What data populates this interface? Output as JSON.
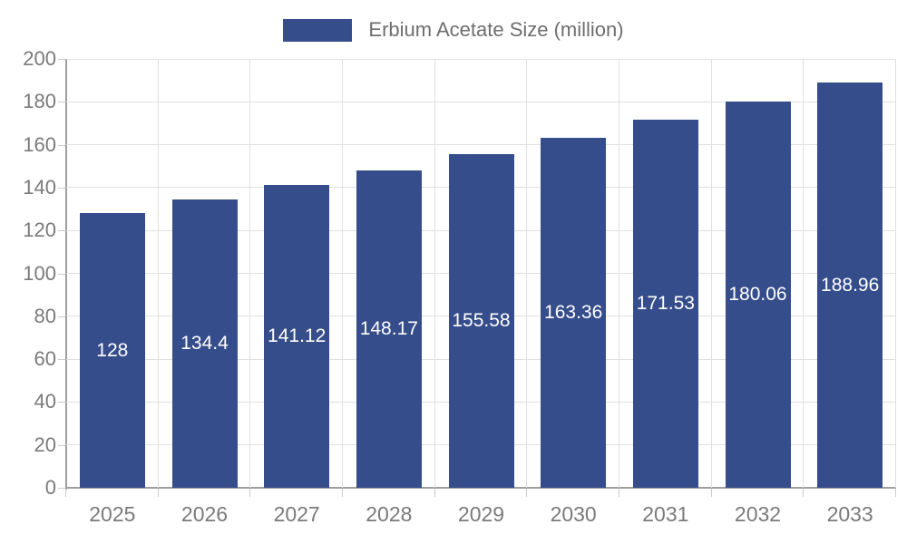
{
  "legend": {
    "label": "Erbium Acetate Size (million)"
  },
  "colors": {
    "bar": "#364d8b",
    "gridline": "#e0e0e0",
    "axis_line": "#9e9e9e",
    "tick_mark": "#cccccc",
    "axis_label_text": "#7a7a7a",
    "legend_text": "#6e6e6e",
    "bar_label_text": "#ffffff"
  },
  "chart_data": {
    "type": "bar",
    "title": "Erbium Acetate Size (million)",
    "categories": [
      "2025",
      "2026",
      "2027",
      "2028",
      "2029",
      "2030",
      "2031",
      "2032",
      "2033"
    ],
    "values": [
      128,
      134.4,
      141.12,
      148.17,
      155.58,
      163.36,
      171.53,
      180.06,
      188.96
    ],
    "xlabel": "",
    "ylabel": "",
    "ylim": [
      0,
      200
    ],
    "yticks": [
      0,
      20,
      40,
      60,
      80,
      100,
      120,
      140,
      160,
      180,
      200
    ],
    "grid": true,
    "legend_position": "top-center",
    "bar_value_labels": "centered-white"
  }
}
